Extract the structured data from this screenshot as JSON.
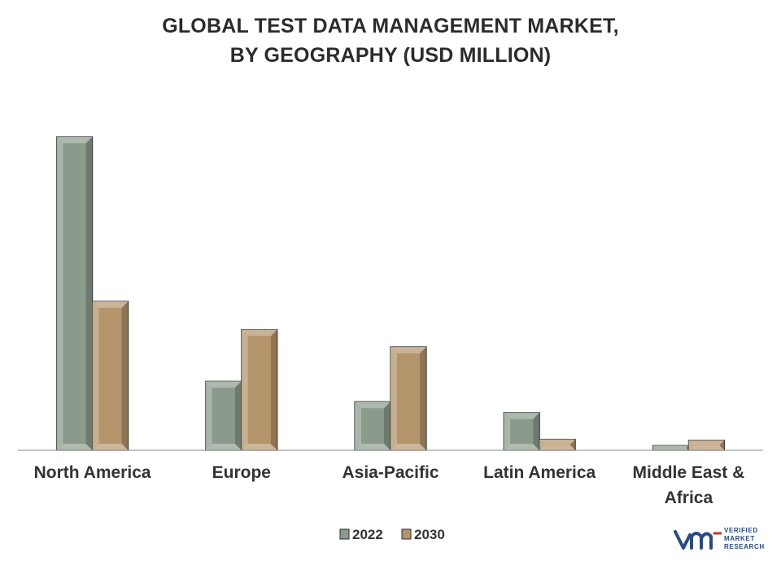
{
  "chart_data": {
    "type": "bar",
    "title_lines": [
      "GLOBAL TEST DATA MANAGEMENT MARKET,",
      "BY GEOGRAPHY (USD MILLION)"
    ],
    "categories": [
      "North America",
      "Europe",
      "Asia-Pacific",
      "Latin America",
      "Middle East & Africa"
    ],
    "category_lines": [
      [
        "North America"
      ],
      [
        "Europe"
      ],
      [
        "Asia-Pacific"
      ],
      [
        "Latin America"
      ],
      [
        "Middle East &",
        "Africa"
      ]
    ],
    "series": [
      {
        "name": "2022",
        "values": [
          100,
          22,
          15.5,
          12,
          1.5
        ],
        "color": "#8a9b8c"
      },
      {
        "name": "2030",
        "values": [
          47.5,
          38.5,
          33,
          3.5,
          3.2
        ],
        "color": "#b4946b"
      }
    ],
    "ylim": [
      0,
      100
    ],
    "grid": false,
    "legend_position": "bottom"
  },
  "logo": {
    "lines": [
      "VERIFIED",
      "MARKET",
      "RESEARCH"
    ],
    "colors": {
      "primary": "#2a4a86",
      "accent": "#c0392b"
    }
  }
}
